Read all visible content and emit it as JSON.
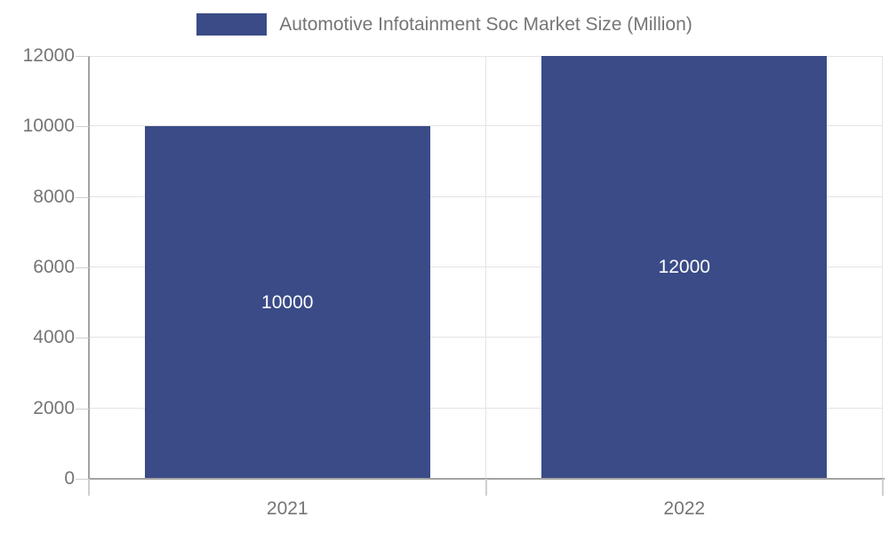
{
  "legend": {
    "label": "Automotive Infotainment Soc Market Size (Million)"
  },
  "colors": {
    "bar": "#3A4B87",
    "axis_line": "#a3a3a3",
    "grid_line": "#e4e4e4",
    "tick_line": "#cfcfcf",
    "text": "#757575",
    "value_label": "#ffffff",
    "background": "#ffffff"
  },
  "chart_data": {
    "type": "bar",
    "title": "Automotive Infotainment Soc Market Size (Million)",
    "categories": [
      "2021",
      "2022"
    ],
    "series": [
      {
        "name": "Automotive Infotainment Soc Market Size (Million)",
        "values": [
          10000,
          12000
        ]
      }
    ],
    "bar_labels": [
      "10000",
      "12000"
    ],
    "xlabel": "",
    "ylabel": "",
    "ylim": [
      0,
      12000
    ],
    "yticks": [
      0,
      2000,
      4000,
      6000,
      8000,
      10000,
      12000
    ],
    "grid": true,
    "legend_position": "top",
    "bar_label_position": "inside-center"
  }
}
